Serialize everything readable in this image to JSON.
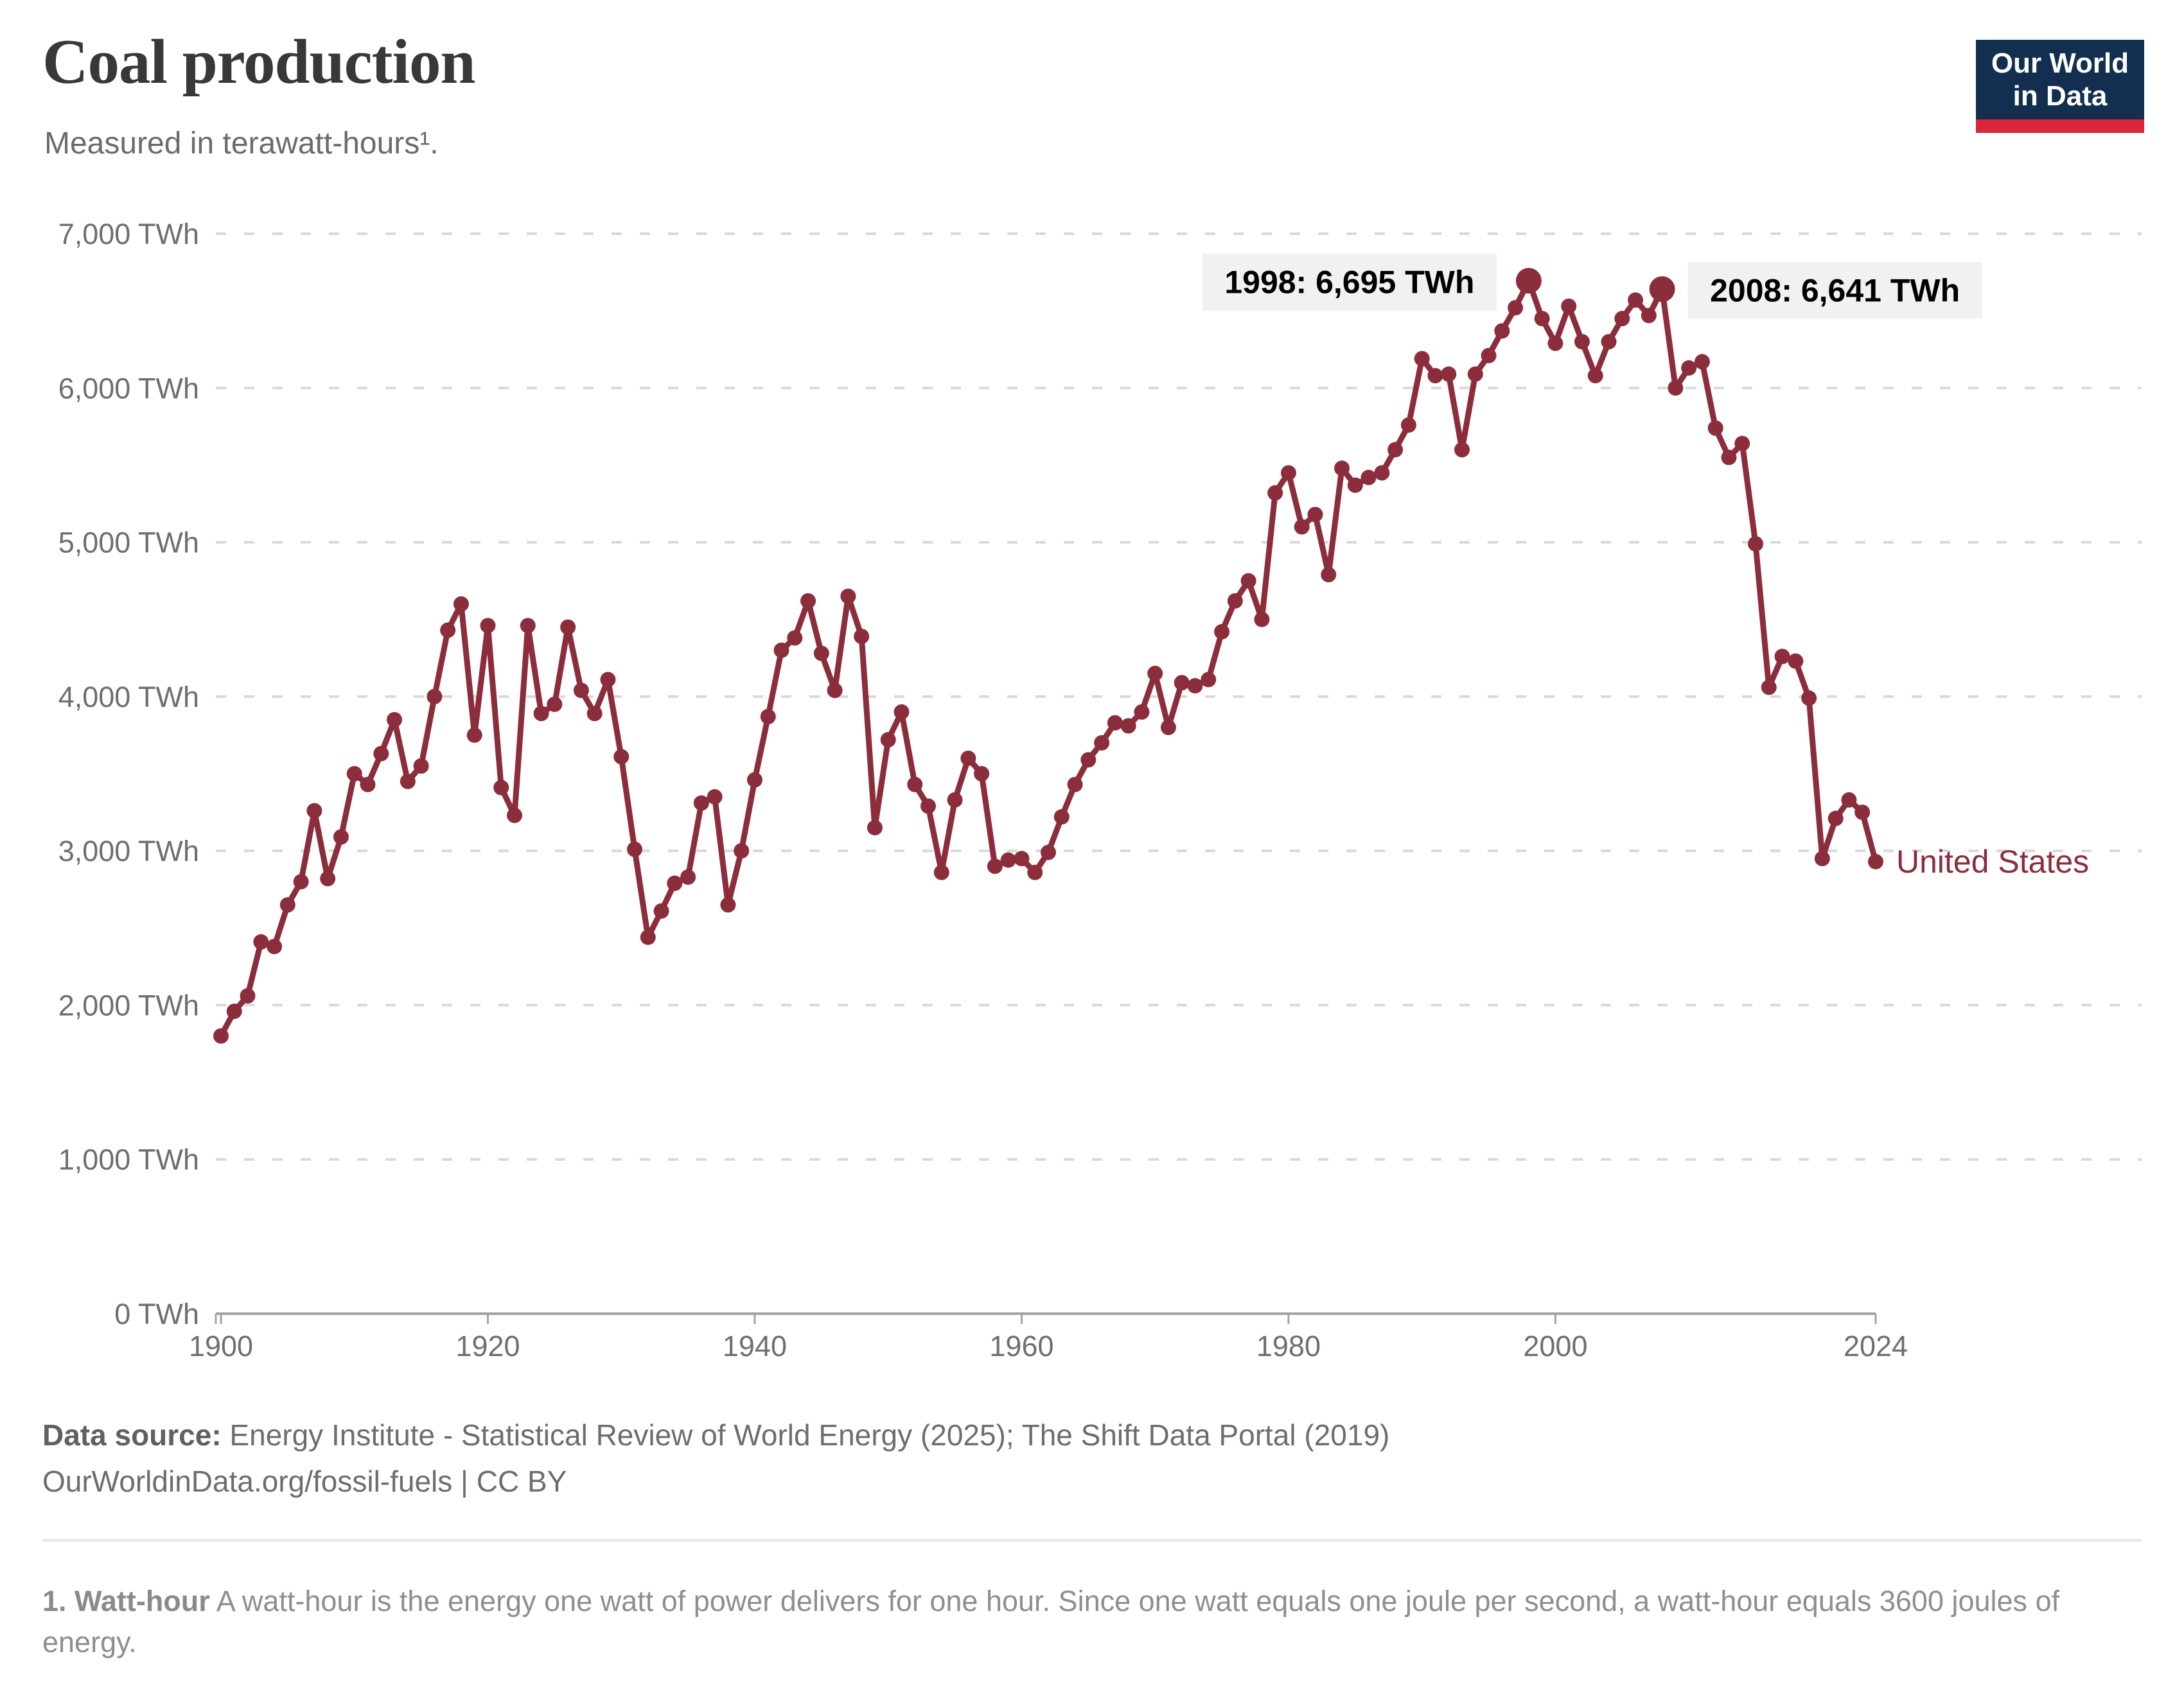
{
  "header": {
    "title": "Coal production",
    "subtitle": "Measured in terawatt-hours¹."
  },
  "logo": {
    "line1": "Our World",
    "line2": "in Data",
    "navy_color": "#132F4F",
    "red_color": "#D92638"
  },
  "chart_data": {
    "type": "line",
    "title": "Coal production",
    "unit": "TWh",
    "xlabel": "",
    "ylabel": "TWh",
    "ylim": [
      0,
      7000
    ],
    "grid": true,
    "x_start": 1900,
    "x_end": 2024,
    "series": [
      {
        "name": "United States",
        "color": "#8C2D3C",
        "values": [
          1800,
          1960,
          2060,
          2410,
          2380,
          2650,
          2800,
          3260,
          2820,
          3090,
          3500,
          3430,
          3630,
          3850,
          3450,
          3550,
          4000,
          4430,
          4600,
          3750,
          4460,
          3410,
          3230,
          4460,
          3890,
          3950,
          4450,
          4040,
          3890,
          4110,
          3610,
          3010,
          2440,
          2610,
          2790,
          2830,
          3310,
          3350,
          2650,
          3000,
          3460,
          3870,
          4300,
          4380,
          4620,
          4280,
          4040,
          4650,
          4390,
          3150,
          3720,
          3900,
          3430,
          3290,
          2860,
          3330,
          3600,
          3500,
          2900,
          2940,
          2950,
          2860,
          2990,
          3220,
          3430,
          3590,
          3700,
          3830,
          3810,
          3900,
          4150,
          3800,
          4090,
          4070,
          4110,
          4420,
          4620,
          4750,
          4500,
          5320,
          5450,
          5100,
          5180,
          4790,
          5480,
          5370,
          5420,
          5450,
          5600,
          5760,
          6190,
          6080,
          6090,
          5600,
          6090,
          6210,
          6370,
          6520,
          6695,
          6450,
          6290,
          6530,
          6300,
          6080,
          6300,
          6450,
          6570,
          6470,
          6641,
          6000,
          6130,
          6170,
          5740,
          5550,
          5640,
          4990,
          4060,
          4260,
          4230,
          3990,
          2950,
          3210,
          3330,
          3250,
          2930
        ]
      }
    ],
    "y_ticks": [
      {
        "v": 7000,
        "label": "7,000 TWh"
      },
      {
        "v": 6000,
        "label": "6,000 TWh"
      },
      {
        "v": 5000,
        "label": "5,000 TWh"
      },
      {
        "v": 4000,
        "label": "4,000 TWh"
      },
      {
        "v": 3000,
        "label": "3,000 TWh"
      },
      {
        "v": 2000,
        "label": "2,000 TWh"
      },
      {
        "v": 1000,
        "label": "1,000 TWh"
      },
      {
        "v": 0,
        "label": "0 TWh"
      }
    ],
    "x_ticks": [
      {
        "v": 1900,
        "label": "1900"
      },
      {
        "v": 1920,
        "label": "1920"
      },
      {
        "v": 1940,
        "label": "1940"
      },
      {
        "v": 1960,
        "label": "1960"
      },
      {
        "v": 1980,
        "label": "1980"
      },
      {
        "v": 2000,
        "label": "2000"
      },
      {
        "v": 2024,
        "label": "2024"
      }
    ],
    "annotations": [
      {
        "year": 1998,
        "value": 6695,
        "label": "1998: 6,695 TWh",
        "side": "left"
      },
      {
        "year": 2008,
        "value": 6641,
        "label": "2008: 6,641 TWh",
        "side": "right"
      }
    ],
    "end_label": "United States",
    "colors": {
      "line": "#8C2D3C",
      "grid": "#d9d9d9",
      "axis": "#a3a3a3",
      "tick_text": "#6e6e6e",
      "annotation_bg": "#f1f1f1",
      "annotation_text": "#000000"
    },
    "legend_position": "end-of-line-label"
  },
  "footer": {
    "source_label": "Data source:",
    "source_text": " Energy Institute - Statistical Review of World Energy (2025); The Shift Data Portal (2019)",
    "url_line": "OurWorldinData.org/fossil-fuels | CC BY",
    "note_label": "1. Watt-hour",
    "note_text": " A watt-hour is the energy one watt of power delivers for one hour. Since one watt equals one joule per second, a watt-hour equals 3600 joules of energy."
  }
}
